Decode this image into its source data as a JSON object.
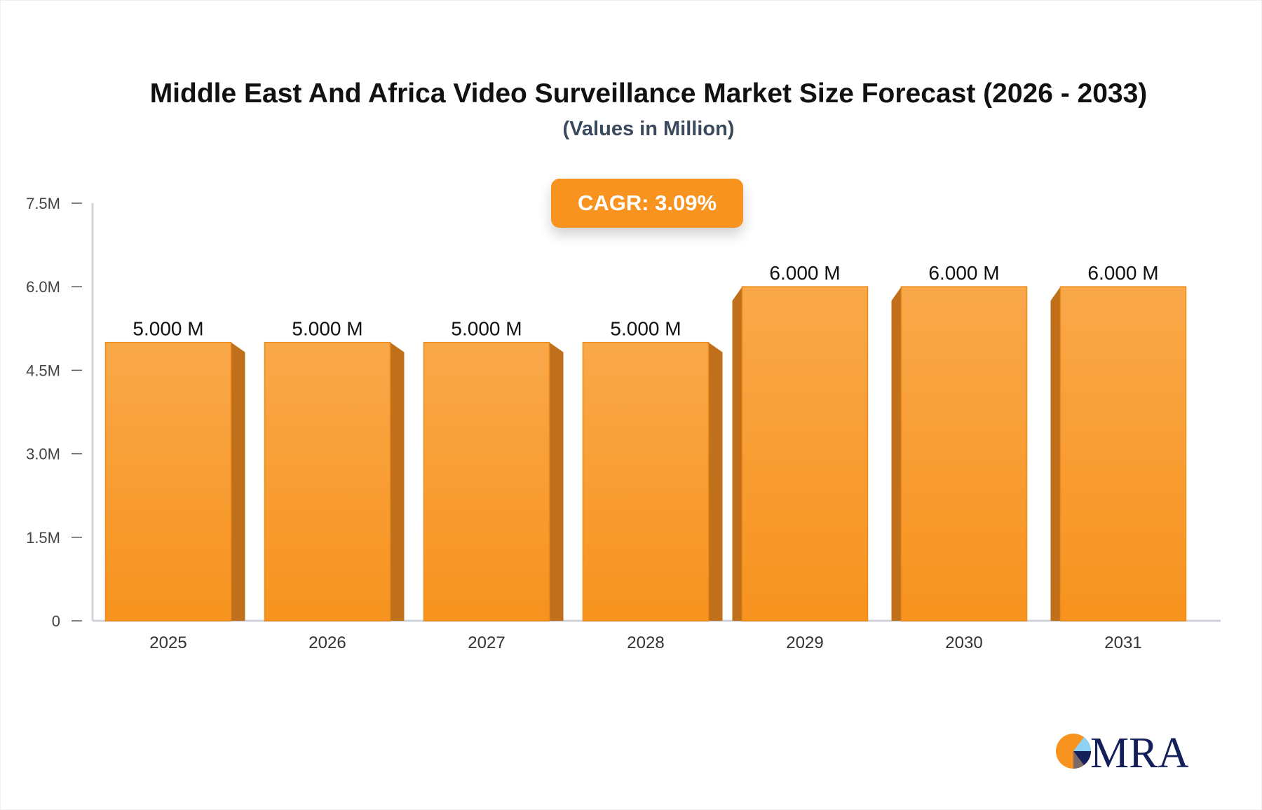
{
  "chart_data": {
    "type": "bar",
    "title": "Middle East And Africa Video Surveillance Market Size Forecast (2026 - 2033)",
    "subtitle": "(Values in Million)",
    "annotation": "CAGR: 3.09%",
    "categories": [
      "2025",
      "2026",
      "2027",
      "2028",
      "2029",
      "2030",
      "2031"
    ],
    "values": [
      5.0,
      5.0,
      5.0,
      5.0,
      6.0,
      6.0,
      6.0
    ],
    "data_labels": [
      "5.000 M",
      "5.000 M",
      "5.000 M",
      "5.000 M",
      "6.000 M",
      "6.000 M",
      "6.000 M"
    ],
    "ylim": [
      0,
      7.5
    ],
    "yticks": [
      0,
      1.5,
      3.0,
      4.5,
      6.0,
      7.5
    ],
    "ytick_labels": [
      "0",
      "1.5M",
      "3.0M",
      "4.5M",
      "6.0M",
      "7.5M"
    ],
    "xlabel": "",
    "ylabel": "",
    "grid": false,
    "colors": {
      "bar_top": "#f9a84a",
      "bar_bottom": "#f7931e",
      "bar_side": "#c0701a",
      "axis": "#d0d3da"
    }
  },
  "logo": {
    "text": "MRA",
    "colors": {
      "orange": "#f7931e",
      "navy": "#14205a",
      "light_blue": "#8fd0f5"
    }
  }
}
